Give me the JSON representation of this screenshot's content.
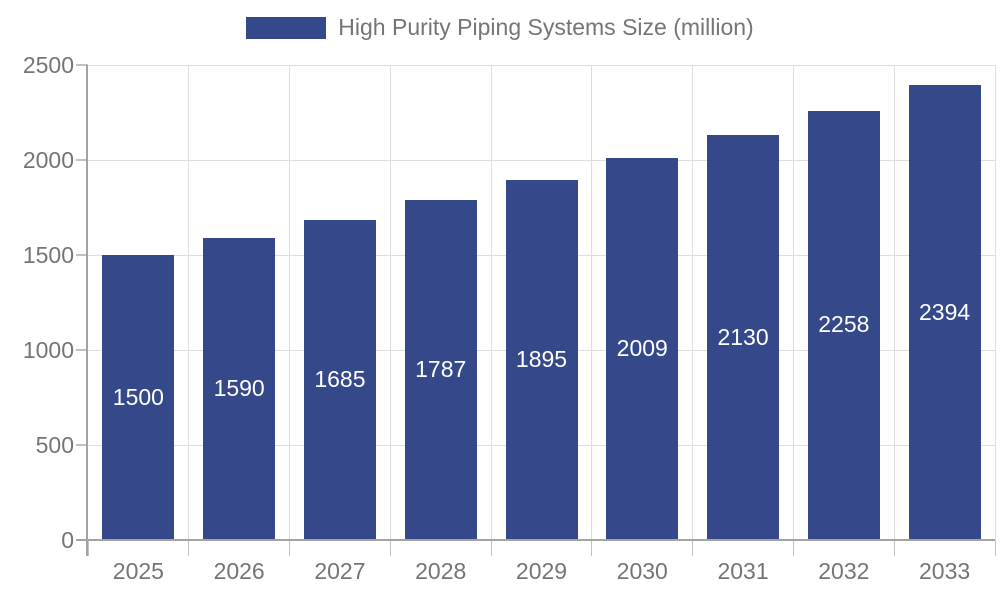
{
  "chart_data": {
    "type": "bar",
    "title": "High Purity Piping Systems Size (million)",
    "categories": [
      "2025",
      "2026",
      "2027",
      "2028",
      "2029",
      "2030",
      "2031",
      "2032",
      "2033"
    ],
    "values": [
      1500,
      1590,
      1685,
      1787,
      1895,
      2009,
      2130,
      2258,
      2394
    ],
    "series_name": "High Purity Piping Systems Size (million)",
    "xlabel": "",
    "ylabel": "",
    "ylim": [
      0,
      2500
    ],
    "yticks": [
      0,
      500,
      1000,
      1500,
      2000,
      2500
    ],
    "grid": true,
    "legend": {
      "position": "top-center",
      "entries": [
        "High Purity Piping Systems Size (million)"
      ]
    },
    "colors": {
      "bar": "#35498a",
      "bar_label": "#ffffff",
      "axis_text": "#757575",
      "grid_line": "#dedede",
      "tick_line": "#c2c2c2",
      "axis_line": "#a3a3a3",
      "background": "#ffffff"
    }
  }
}
